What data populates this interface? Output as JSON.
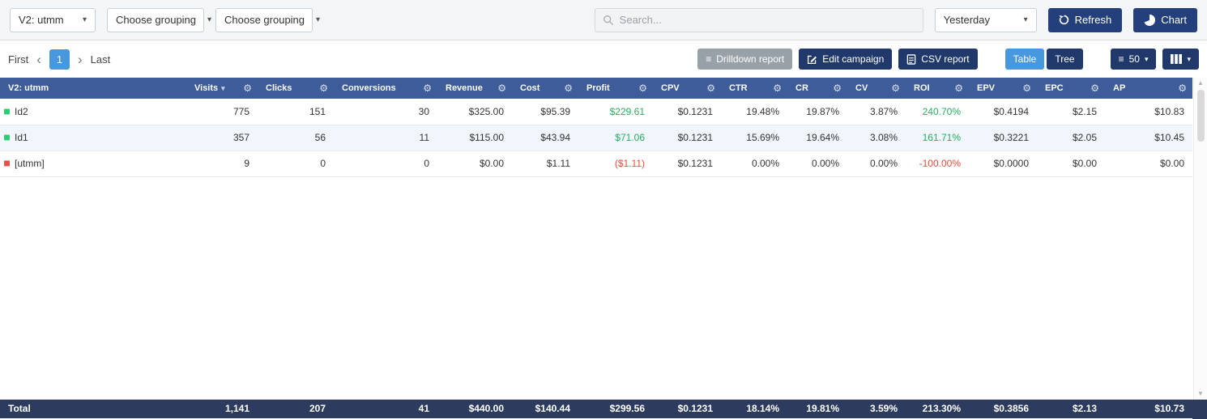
{
  "toolbar": {
    "campaign_select": "V2: utmm",
    "grouping1": "Choose grouping",
    "grouping2": "Choose grouping",
    "search_placeholder": "Search...",
    "date_select": "Yesterday",
    "refresh": "Refresh",
    "chart": "Chart"
  },
  "controls": {
    "pagination": {
      "first": "First",
      "current_page": "1",
      "last": "Last"
    },
    "drilldown": "Drilldown report",
    "edit_campaign": "Edit campaign",
    "csv": "CSV report",
    "table_view": "Table",
    "tree_view": "Tree",
    "page_size": "50"
  },
  "icons": {
    "caret_down": "▾",
    "gear": "⚙",
    "sort_desc": "▾",
    "chevron_left": "‹",
    "chevron_right": "›",
    "scroll_up": "▲",
    "scroll_down": "▼",
    "list": "≡"
  },
  "table": {
    "name_header": "V2: utmm",
    "sorted_by": "Visits",
    "metric_headers": [
      "Visits",
      "Clicks",
      "Conversions",
      "Revenue",
      "Cost",
      "Profit",
      "CPV",
      "CTR",
      "CR",
      "CV",
      "ROI",
      "EPV",
      "EPC",
      "AP"
    ],
    "rows": [
      {
        "status": "green",
        "name": "Id2",
        "cells": [
          {
            "v": "775"
          },
          {
            "v": "151"
          },
          {
            "v": "30"
          },
          {
            "v": "$325.00"
          },
          {
            "v": "$95.39"
          },
          {
            "v": "$229.61",
            "s": "pos"
          },
          {
            "v": "$0.1231"
          },
          {
            "v": "19.48%"
          },
          {
            "v": "19.87%"
          },
          {
            "v": "3.87%"
          },
          {
            "v": "240.70%",
            "s": "pos"
          },
          {
            "v": "$0.4194"
          },
          {
            "v": "$2.15"
          },
          {
            "v": "$10.83"
          }
        ]
      },
      {
        "status": "green",
        "name": "Id1",
        "cells": [
          {
            "v": "357"
          },
          {
            "v": "56"
          },
          {
            "v": "11"
          },
          {
            "v": "$115.00"
          },
          {
            "v": "$43.94"
          },
          {
            "v": "$71.06",
            "s": "pos"
          },
          {
            "v": "$0.1231"
          },
          {
            "v": "15.69%"
          },
          {
            "v": "19.64%"
          },
          {
            "v": "3.08%"
          },
          {
            "v": "161.71%",
            "s": "pos"
          },
          {
            "v": "$0.3221"
          },
          {
            "v": "$2.05"
          },
          {
            "v": "$10.45"
          }
        ]
      },
      {
        "status": "red",
        "name": "[utmm]",
        "cells": [
          {
            "v": "9"
          },
          {
            "v": "0"
          },
          {
            "v": "0"
          },
          {
            "v": "$0.00"
          },
          {
            "v": "$1.11"
          },
          {
            "v": "($1.11)",
            "s": "neg"
          },
          {
            "v": "$0.1231"
          },
          {
            "v": "0.00%"
          },
          {
            "v": "0.00%"
          },
          {
            "v": "0.00%"
          },
          {
            "v": "-100.00%",
            "s": "neg"
          },
          {
            "v": "$0.0000"
          },
          {
            "v": "$0.00"
          },
          {
            "v": "$0.00"
          }
        ]
      }
    ],
    "total": {
      "label": "Total",
      "cells": [
        {
          "v": "1,141"
        },
        {
          "v": "207"
        },
        {
          "v": "41"
        },
        {
          "v": "$440.00"
        },
        {
          "v": "$140.44"
        },
        {
          "v": "$299.56",
          "s": "pos"
        },
        {
          "v": "$0.1231"
        },
        {
          "v": "18.14%"
        },
        {
          "v": "19.81%"
        },
        {
          "v": "3.59%"
        },
        {
          "v": "213.30%",
          "s": "pos"
        },
        {
          "v": "$0.3856"
        },
        {
          "v": "$2.13"
        },
        {
          "v": "$10.73"
        }
      ]
    }
  },
  "colors": {
    "header_bg": "#3e5c99",
    "total_bg": "#2d3c5e",
    "accent_blue": "#4798dd",
    "navy_button": "#21386b",
    "dark_navy_button": "#24407c",
    "gray_button": "#98a1a8",
    "positive": "#27ae60",
    "positive_bright": "#2ecc71",
    "negative": "#e74c3c",
    "status_green": "#2ecc71",
    "status_red": "#e8504a"
  }
}
